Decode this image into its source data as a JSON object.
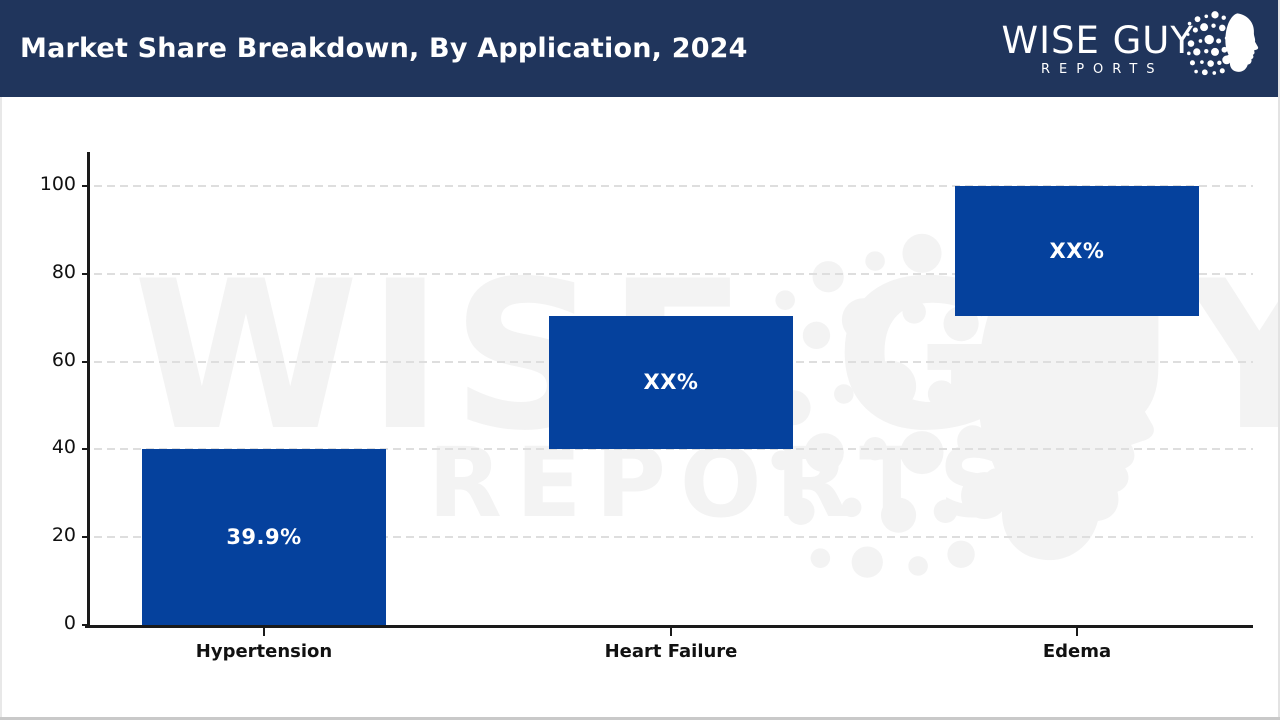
{
  "header": {
    "title": "Market Share Breakdown, By Application, 2024",
    "logo": {
      "line1": "WISE GUY",
      "line2": "REPORTS"
    }
  },
  "watermark": {
    "line1": "WISE GUY",
    "line2": "REPORTS"
  },
  "colors": {
    "header_bg": "#20355C",
    "bar": "#05419D",
    "bar_label_text": "#FFFFFF",
    "grid": "#DEDEDE",
    "axis": "#1A1A1A",
    "watermark": "#F3F3F3"
  },
  "chart_data": {
    "type": "bar",
    "subtype": "floating-waterfall",
    "title": "Market Share Breakdown, By Application, 2024",
    "xlabel": "",
    "ylabel": "",
    "categories": [
      "Hypertension",
      "Heart Failure",
      "Edema"
    ],
    "series": [
      {
        "name": "Market Share",
        "segments": [
          {
            "category": "Hypertension",
            "from": 0,
            "to": 40,
            "label": "39.9%"
          },
          {
            "category": "Heart Failure",
            "from": 40,
            "to": 70.5,
            "label": "XX%"
          },
          {
            "category": "Edema",
            "from": 70.5,
            "to": 100,
            "label": "XX%"
          }
        ]
      }
    ],
    "ylim": [
      0,
      105
    ],
    "yticks": [
      0,
      20,
      40,
      60,
      80,
      100
    ],
    "grid": "horizontal-dashed",
    "legend": "none"
  }
}
